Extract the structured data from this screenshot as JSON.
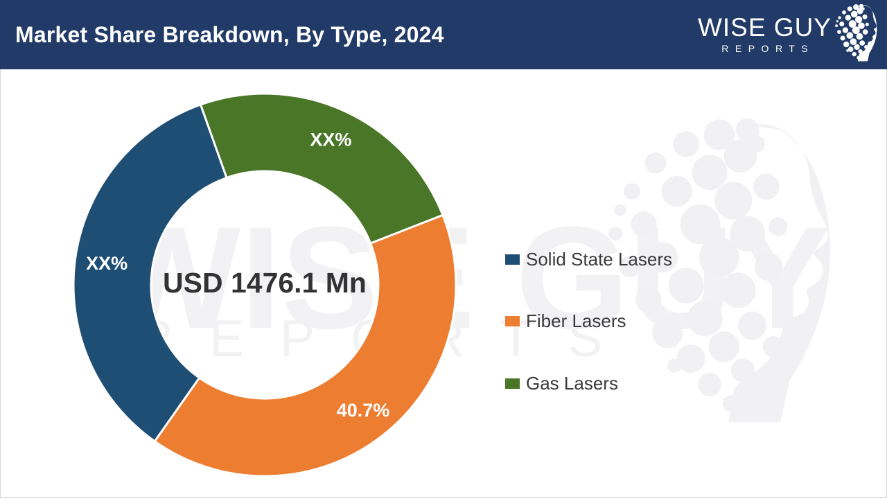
{
  "header": {
    "title": "Market Share Breakdown, By Type, 2024",
    "bg_color": "#213a67",
    "logo": {
      "line1": "WISE GUY",
      "line2": "REPORTS"
    }
  },
  "watermark": {
    "line1": "WISE GUY",
    "line2": "REPORTS"
  },
  "chart_data": {
    "type": "pie",
    "subtype": "donut",
    "title": "Market Share Breakdown, By Type, 2024",
    "center_label": "USD 1476.1 Mn",
    "start_angle_deg": -19.6,
    "direction": "clockwise",
    "legend_position": "right",
    "segments": [
      {
        "label": "Gas Lasers",
        "value_pct": 24.5,
        "display": "XX%",
        "color": "#4a7628"
      },
      {
        "label": "Fiber Lasers",
        "value_pct": 40.7,
        "display": "40.7%",
        "color": "#ed7d31"
      },
      {
        "label": "Solid State Lasers",
        "value_pct": 34.8,
        "display": "XX%",
        "color": "#1f4e74"
      }
    ]
  },
  "legend": {
    "items": [
      {
        "label": "Solid State Lasers",
        "color": "#1f4e74"
      },
      {
        "label": "Fiber Lasers",
        "color": "#ed7d31"
      },
      {
        "label": "Gas Lasers",
        "color": "#4a7628"
      }
    ]
  }
}
